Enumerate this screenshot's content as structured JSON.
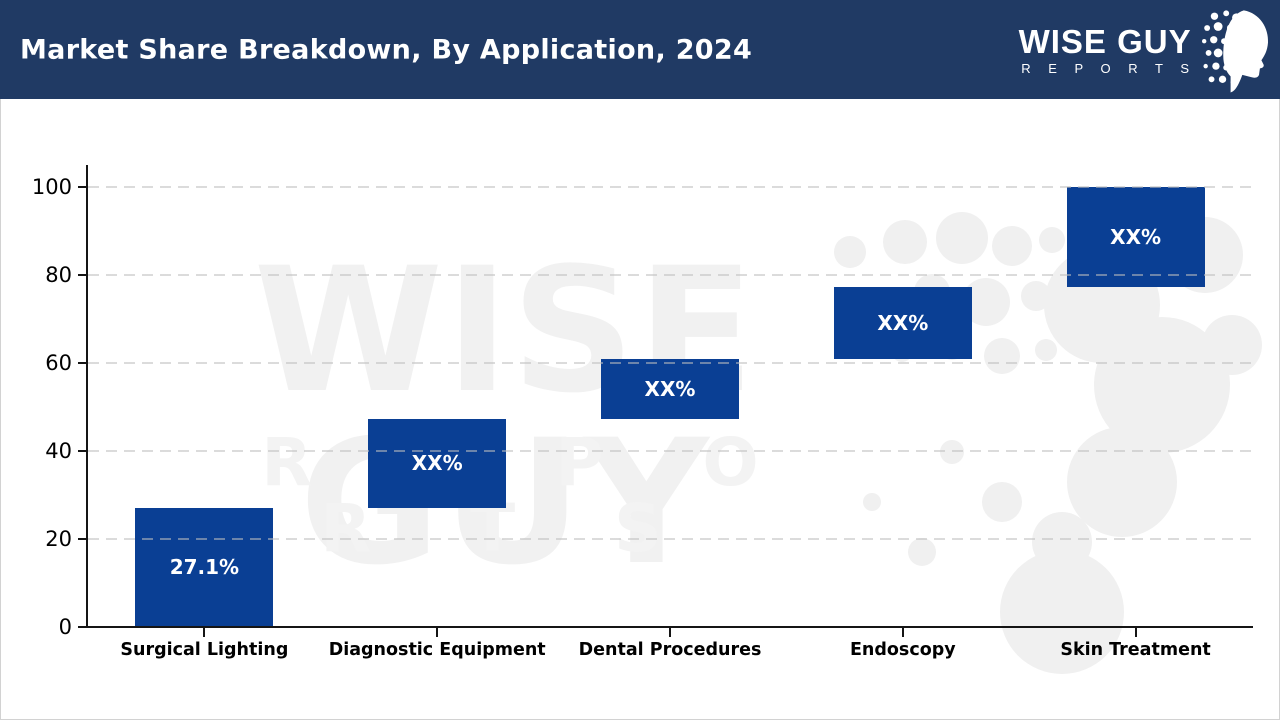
{
  "header": {
    "title": "Market Share Breakdown, By Application, 2024",
    "logo_line1": "WISE GUY",
    "logo_line2": "R E P O R T S",
    "bg_color": "#203a64"
  },
  "watermark": {
    "line1": "WISE GUY",
    "line2": "R E P O R T S"
  },
  "chart_data": {
    "type": "bar",
    "subtype": "waterfall",
    "title": "Market Share Breakdown, By Application, 2024",
    "categories": [
      "Surgical Lighting",
      "Diagnostic Equipment",
      "Dental Procedures",
      "Endoscopy",
      "Skin Treatment"
    ],
    "segments": [
      {
        "category": "Surgical Lighting",
        "start": 0,
        "end": 27.1,
        "label": "27.1%"
      },
      {
        "category": "Diagnostic Equipment",
        "start": 27.1,
        "end": 47.3,
        "label": "XX%"
      },
      {
        "category": "Dental Procedures",
        "start": 47.3,
        "end": 61.0,
        "label": "XX%"
      },
      {
        "category": "Endoscopy",
        "start": 61.0,
        "end": 77.3,
        "label": "XX%"
      },
      {
        "category": "Skin Treatment",
        "start": 77.3,
        "end": 100.0,
        "label": "XX%"
      }
    ],
    "yticks": [
      0,
      20,
      40,
      60,
      80,
      100
    ],
    "ylim": [
      0,
      105
    ],
    "xlabel": "",
    "ylabel": "",
    "grid": "dashed-horizontal",
    "legend": "none",
    "bar_color": "#0a3f94",
    "bar_label_color": "#ffffff",
    "axis_color": "#151515"
  }
}
